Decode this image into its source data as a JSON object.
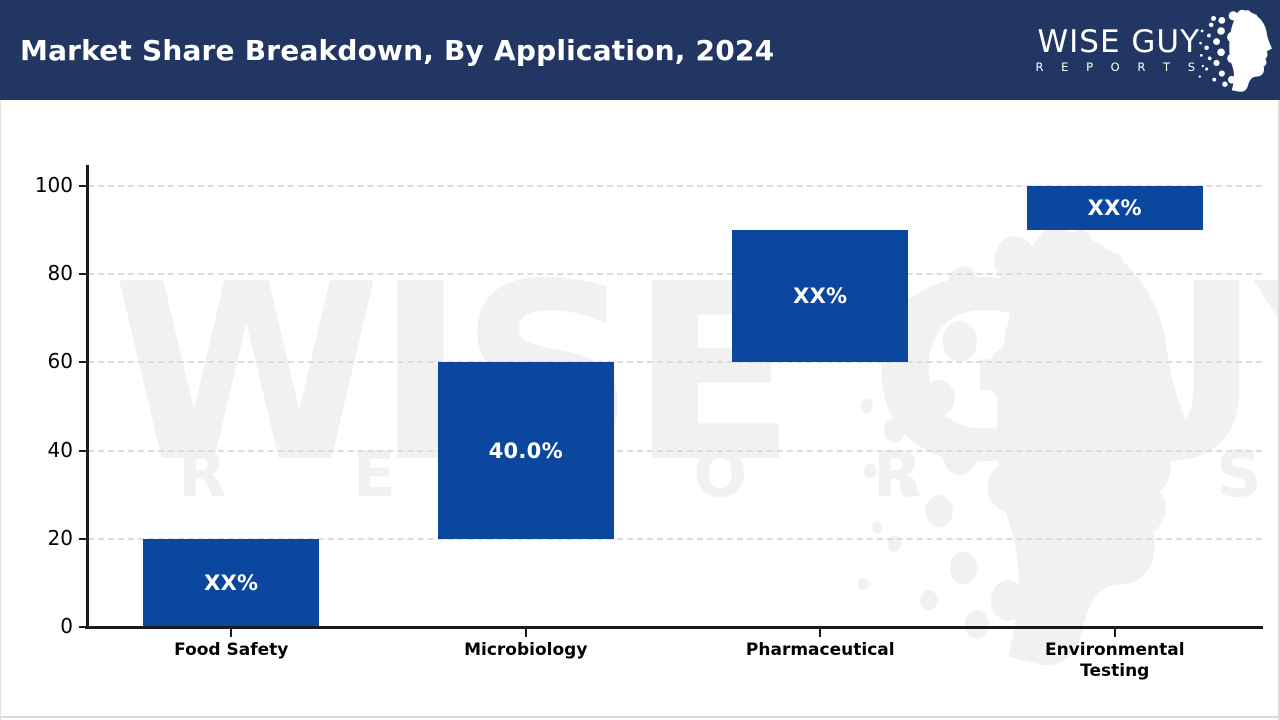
{
  "header": {
    "title": "Market Share Breakdown, By Application, 2024",
    "bg_color": "#213663",
    "logo": {
      "line1": "WISE GUY",
      "line2": "R E P O R T S",
      "face_icon": "dotted-face-profile"
    }
  },
  "watermark": {
    "line1": "WISE GUY",
    "line2": "R E P O R T S",
    "color": "#f1f1f1",
    "face_icon": "dotted-face-profile"
  },
  "chart_data": {
    "type": "bar",
    "subtype": "waterfall",
    "title": "Market Share Breakdown, By Application, 2024",
    "xlabel": "",
    "ylabel": "",
    "categories": [
      "Food Safety",
      "Microbiology",
      "Pharmaceutical",
      "Environmental Testing"
    ],
    "series": [
      {
        "name": "Market Share (%)",
        "segments": [
          {
            "category": "Food Safety",
            "start": 0,
            "end": 20,
            "value_label": "XX%"
          },
          {
            "category": "Microbiology",
            "start": 20,
            "end": 60,
            "value_label": "40.0%"
          },
          {
            "category": "Pharmaceutical",
            "start": 60,
            "end": 90,
            "value_label": "XX%"
          },
          {
            "category": "Environmental Testing",
            "start": 90,
            "end": 100,
            "value_label": "XX%"
          }
        ]
      }
    ],
    "ylim": [
      0,
      105
    ],
    "yticks": [
      0,
      20,
      40,
      60,
      80,
      100
    ],
    "grid": "horizontal-dashed",
    "legend": "none",
    "bar_color": "#0b479e",
    "bar_label_color": "#ffffff",
    "grid_color": "#dcdcdc",
    "axis_color": "#1a1a1a",
    "tick_label_color": "#000000"
  }
}
